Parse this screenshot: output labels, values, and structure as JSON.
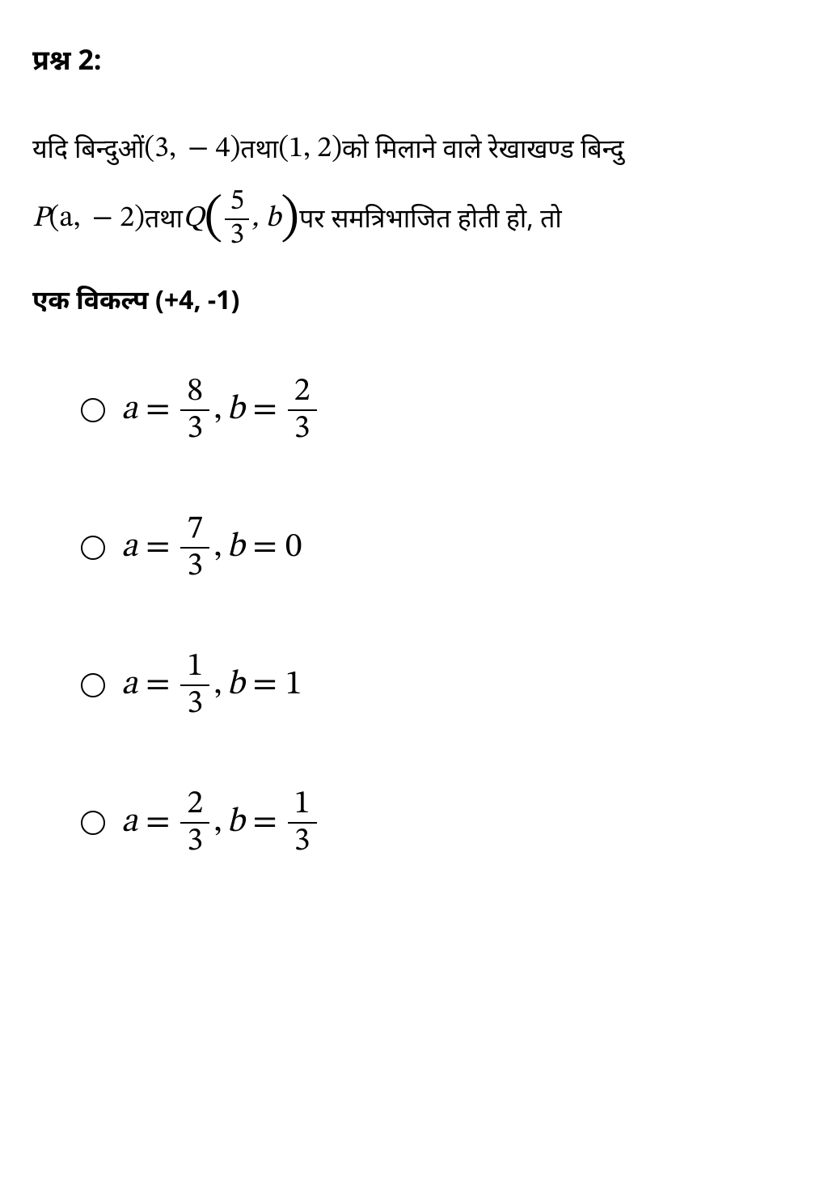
{
  "question_number": "प्रश्न 2:",
  "q_text1": "यदि बिन्दुओं ",
  "q_text2": " तथा ",
  "q_text3": " को मिलाने वाले रेखाखण्ड बिन्दु",
  "q_text4": " तथा ",
  "q_text5": " पर समत्रिभाजित होती हो, तो",
  "option_header": "एक विकल्प (+4, -1)",
  "point1_open": "(3,",
  "point1_neg": " − 4)",
  "point2": "(1, 2)",
  "P_label": "P",
  "P_open": "(a,",
  "P_neg": " − 2)",
  "Q_label": "Q",
  "Q_frac_num": "5",
  "Q_frac_den": "3",
  "Q_b": ", b",
  "opt_var_a": "a",
  "opt_var_b": "b",
  "o1_a_num": "8",
  "o1_a_den": "3",
  "o1_b_num": "2",
  "o1_b_den": "3",
  "o2_a_num": "7",
  "o2_a_den": "3",
  "o2_b_val": "0",
  "o3_a_num": "1",
  "o3_a_den": "3",
  "o3_b_val": "1",
  "o4_a_num": "2",
  "o4_a_den": "3",
  "o4_b_num": "1",
  "o4_b_den": "3"
}
